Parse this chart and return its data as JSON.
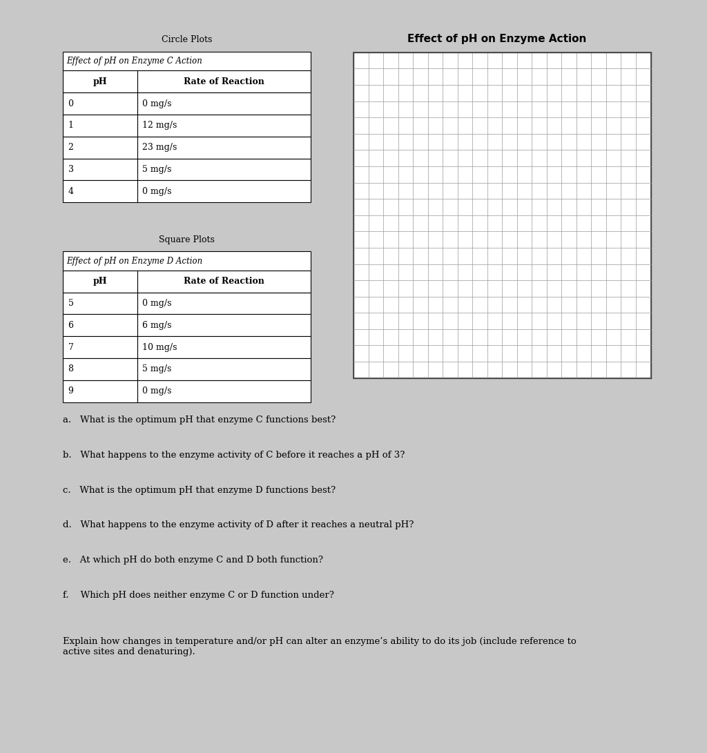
{
  "bg_color": "#c8c8c8",
  "page_bg": "#ffffff",
  "title_circle": "Circle Plots",
  "table_c_title": "Effect of pH on Enzyme C Action",
  "table_c_col1": "pH",
  "table_c_col2": "Rate of Reaction",
  "table_c_data": [
    [
      "0",
      "0 mg/s"
    ],
    [
      "1",
      "12 mg/s"
    ],
    [
      "2",
      "23 mg/s"
    ],
    [
      "3",
      "5 mg/s"
    ],
    [
      "4",
      "0 mg/s"
    ]
  ],
  "title_square": "Square Plots",
  "table_d_title": "Effect of pH on Enzyme D Action",
  "table_d_col1": "pH",
  "table_d_col2": "Rate of Reaction",
  "table_d_data": [
    [
      "5",
      "0 mg/s"
    ],
    [
      "6",
      "6 mg/s"
    ],
    [
      "7",
      "10 mg/s"
    ],
    [
      "8",
      "5 mg/s"
    ],
    [
      "9",
      "0 mg/s"
    ]
  ],
  "graph_title": "Effect of pH on Enzyme Action",
  "questions": [
    "a.   What is the optimum pH that enzyme C functions best?",
    "b.   What happens to the enzyme activity of C before it reaches a pH of 3?",
    "c.   What is the optimum pH that enzyme D functions best?",
    "d.   What happens to the enzyme activity of D after it reaches a neutral pH?",
    "e.   At which pH do both enzyme C and D both function?",
    "f.    Which pH does neither enzyme C or D function under?"
  ],
  "bottom_text": "Explain how changes in temperature and/or pH can alter an enzyme’s ability to do its job (include reference to\nactive sites and denaturing).",
  "grid_cols": 20,
  "grid_rows": 20,
  "grid_color": "#999999",
  "table_border_color": "#000000"
}
